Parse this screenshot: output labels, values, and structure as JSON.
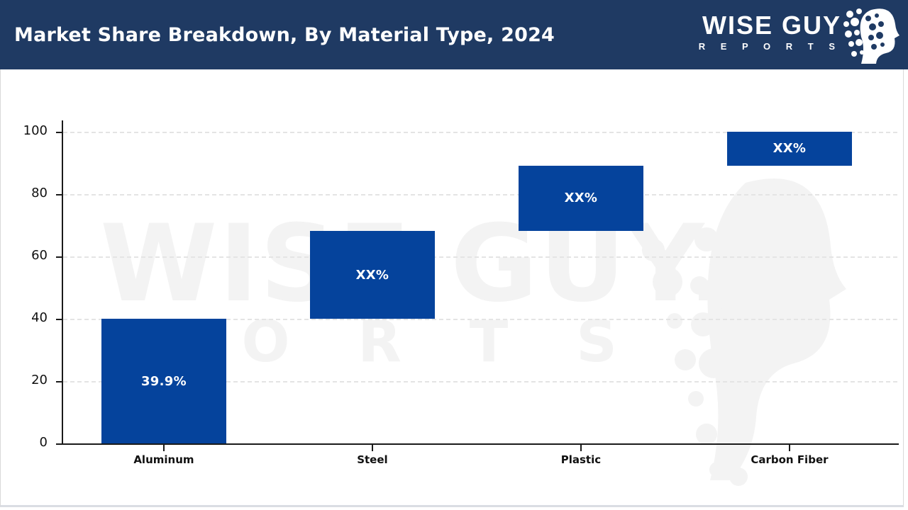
{
  "header": {
    "title": "Market Share Breakdown, By Material Type, 2024",
    "bg_color": "#1f3a63",
    "logo": {
      "line1": "WISE GUY",
      "line2": "R E P O R T S"
    }
  },
  "watermark": {
    "line1": "WISE GUY.",
    "line2": "P O R T S",
    "color": "#f3f3f3"
  },
  "chart_data": {
    "type": "bar",
    "subtype": "waterfall",
    "title": "Market Share Breakdown, By Material Type, 2024",
    "categories": [
      "Aluminum",
      "Steel",
      "Plastic",
      "Carbon Fiber"
    ],
    "segments": [
      {
        "category": "Aluminum",
        "start": 0,
        "end": 39.9,
        "label": "39.9%"
      },
      {
        "category": "Steel",
        "start": 39.9,
        "end": 68.2,
        "label": "XX%"
      },
      {
        "category": "Plastic",
        "start": 68.2,
        "end": 89.1,
        "label": "XX%"
      },
      {
        "category": "Carbon Fiber",
        "start": 89.1,
        "end": 100,
        "label": "XX%"
      }
    ],
    "xlabel": "",
    "ylabel": "",
    "ylim": [
      0,
      100
    ],
    "yticks": [
      0,
      20,
      40,
      60,
      80,
      100
    ],
    "grid": "horizontal-dashed",
    "legend": "none",
    "bar_color": "#05439c",
    "bar_label_color": "#ffffff",
    "axis_color": "#1a1a1a",
    "gridline_color": "#e4e4e4"
  }
}
